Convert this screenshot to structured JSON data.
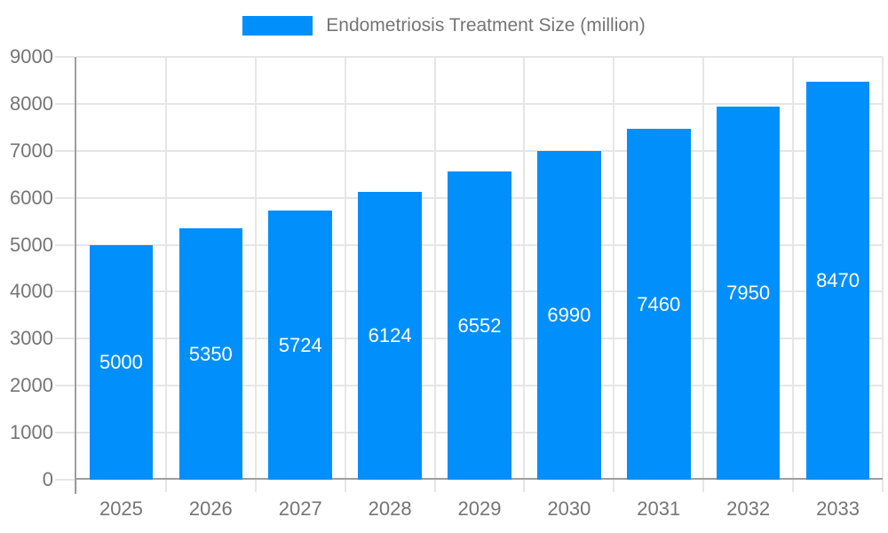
{
  "chart_data": {
    "type": "bar",
    "title": "Endometriosis Treatment Size (million)",
    "legend": {
      "position": "top",
      "label": "Endometriosis Treatment Size (million)"
    },
    "categories": [
      "2025",
      "2026",
      "2027",
      "2028",
      "2029",
      "2030",
      "2031",
      "2032",
      "2033"
    ],
    "series": [
      {
        "name": "Endometriosis Treatment Size (million)",
        "values": [
          5000,
          5350,
          5724,
          6124,
          6552,
          6990,
          7460,
          7950,
          8470
        ]
      }
    ],
    "xlabel": "",
    "ylabel": "",
    "ylim": [
      0,
      9000
    ],
    "y_ticks": [
      0,
      1000,
      2000,
      3000,
      4000,
      5000,
      6000,
      7000,
      8000,
      9000
    ],
    "grid": true,
    "bar_labels_inside": true
  },
  "colors": {
    "bar": "#008ffb",
    "bar_label": "#ffffff",
    "axis_text": "#757575",
    "axis_line": "#9e9e9e",
    "gridline": "#e6e6e6",
    "background": "#ffffff"
  }
}
